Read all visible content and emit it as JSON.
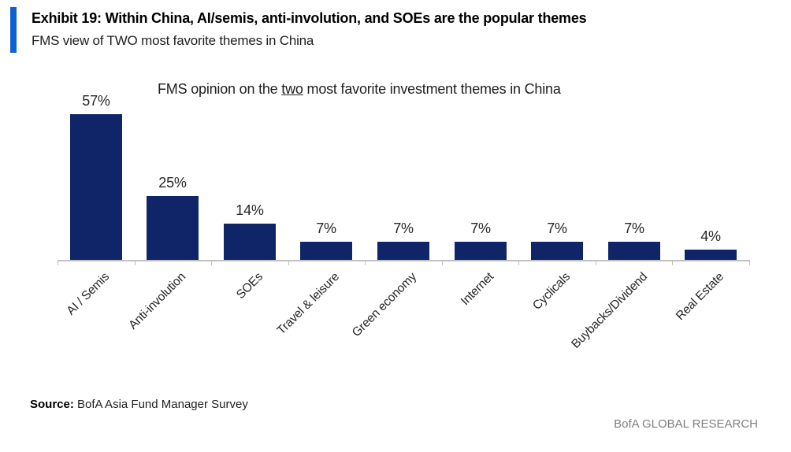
{
  "header": {
    "exhibit_title": "Exhibit 19: Within China, AI/semis, anti-involution, and SOEs are the popular themes",
    "subtitle": "FMS view of TWO most favorite themes in China",
    "accent_color": "#0d62d0"
  },
  "chart_data": {
    "type": "bar",
    "title": "FMS opinion on the two most favorite investment themes in China",
    "title_parts": {
      "prefix": "FMS opinion on the ",
      "underlined": "two",
      "suffix": " most favorite investment themes in China"
    },
    "categories": [
      "AI / Semis",
      "Anti-involution",
      "SOEs",
      "Travel & leisure",
      "Green economy",
      "Internet",
      "Cyclicals",
      "Buybacks/Dividend",
      "Real Estate"
    ],
    "values": [
      57,
      25,
      14,
      7,
      7,
      7,
      7,
      7,
      4
    ],
    "value_labels": [
      "57%",
      "25%",
      "14%",
      "7%",
      "7%",
      "7%",
      "7%",
      "7%",
      "4%"
    ],
    "value_suffix": "%",
    "xlabel": "",
    "ylabel": "",
    "ylim": [
      0,
      60
    ],
    "grid": false,
    "legend_position": "none",
    "bar_color": "#0f2568",
    "axis_color": "#c0c0c0",
    "label_rotation_deg": -45
  },
  "footer": {
    "source_label": "Source:",
    "source_text": " BofA Asia Fund Manager Survey",
    "brand": "BofA GLOBAL RESEARCH"
  }
}
